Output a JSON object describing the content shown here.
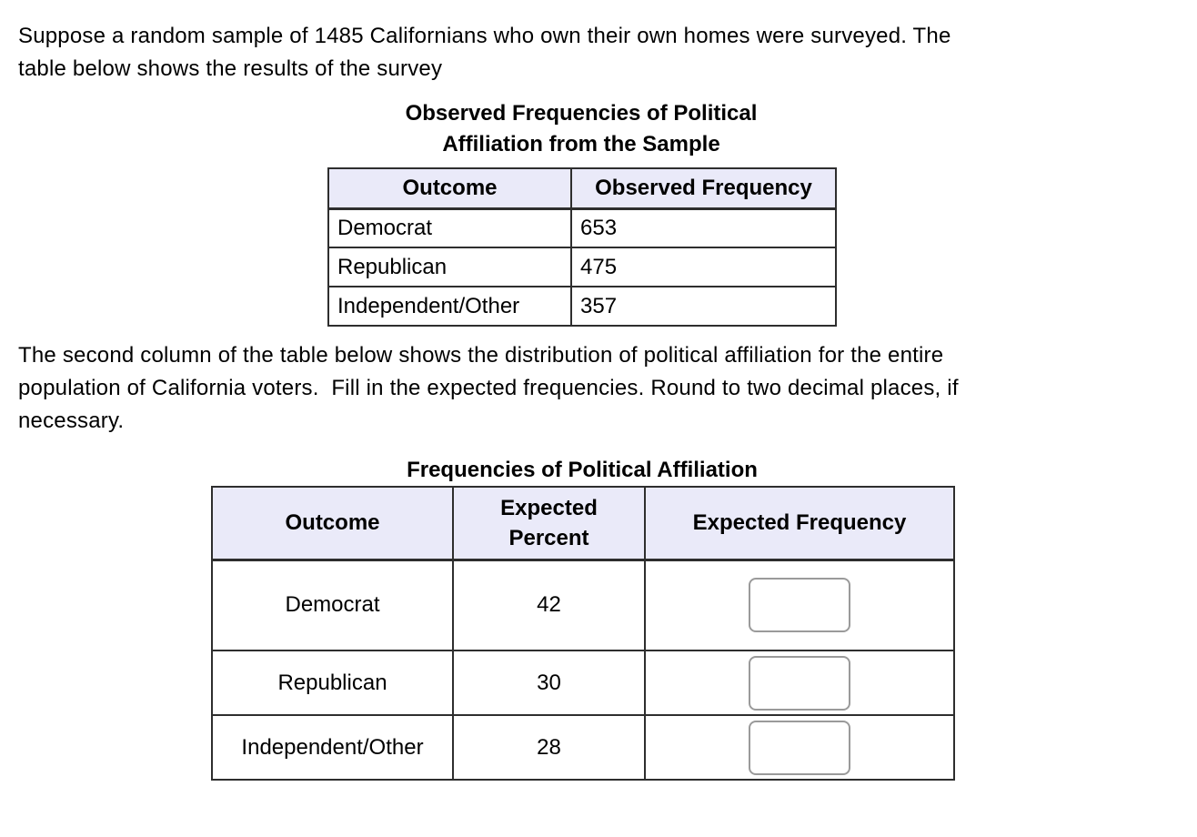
{
  "colors": {
    "header_background": "#eaeaf9",
    "table_border": "#2e2e2e",
    "input_border": "#9a9a9a",
    "text": "#000000",
    "page_background": "#ffffff"
  },
  "intro_paragraph": [
    "Suppose a random sample of 1485 Californians who own their own homes were surveyed. The",
    "table below shows the results of the survey"
  ],
  "observed_table": {
    "title": [
      "Observed Frequencies of Political",
      "Affiliation from the Sample"
    ],
    "columns": [
      "Outcome",
      "Observed Frequency"
    ],
    "rows": [
      {
        "outcome": "Democrat",
        "observed_frequency": "653"
      },
      {
        "outcome": "Republican",
        "observed_frequency": "475"
      },
      {
        "outcome": "Independent/Other",
        "observed_frequency": "357"
      }
    ]
  },
  "instruction_paragraph": [
    "The second column of the table below shows the distribution of political affiliation for the entire",
    "population of California voters.  Fill in the expected frequencies. Round to two decimal places, if",
    "necessary."
  ],
  "expected_table": {
    "title": "Frequencies of Political Affiliation",
    "columns": [
      "Outcome",
      "Expected\nPercent",
      "Expected Frequency"
    ],
    "rows": [
      {
        "outcome": "Democrat",
        "expected_percent": "42",
        "expected_frequency_input": ""
      },
      {
        "outcome": "Republican",
        "expected_percent": "30",
        "expected_frequency_input": ""
      },
      {
        "outcome": "Independent/Other",
        "expected_percent": "28",
        "expected_frequency_input": ""
      }
    ]
  }
}
